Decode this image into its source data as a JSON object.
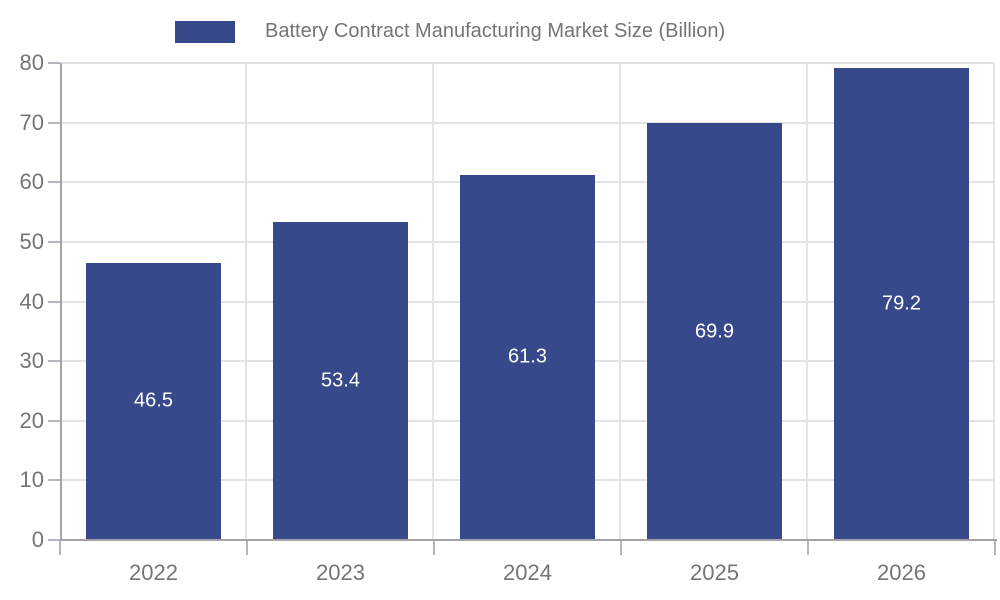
{
  "chart_data": {
    "type": "bar",
    "title": "Battery Contract Manufacturing Market Size (Billion)",
    "categories": [
      "2022",
      "2023",
      "2024",
      "2025",
      "2026"
    ],
    "values": [
      46.5,
      53.4,
      61.3,
      69.9,
      79.2
    ],
    "value_labels": [
      "46.5",
      "53.4",
      "61.3",
      "69.9",
      "79.2"
    ],
    "xlabel": "",
    "ylabel": "",
    "ylim": [
      0,
      80
    ],
    "yticks": [
      0,
      10,
      20,
      30,
      40,
      50,
      60,
      70,
      80
    ],
    "grid": true,
    "legend": {
      "position": "top-center",
      "entries": [
        "Battery Contract Manufacturing Market Size (Billion)"
      ]
    },
    "colors": {
      "bar": "#37498a",
      "value_label": "#ffffff",
      "gridline": "#e4e4e6",
      "axis": "#a2a2a8",
      "tick": "#b6b6be",
      "tick_label": "#737578",
      "legend_text": "#737578",
      "background": "#ffffff"
    }
  }
}
